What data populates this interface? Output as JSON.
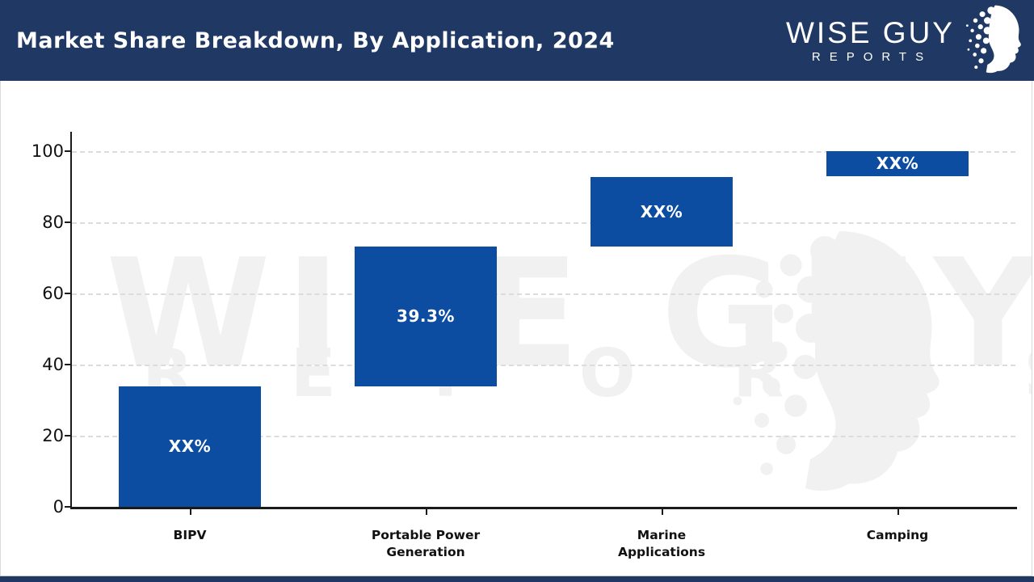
{
  "header": {
    "title": "Market Share Breakdown, By Application, 2024",
    "bg_color": "#1f3864",
    "logo": {
      "line1": "WISE GUY",
      "line2": "REPORTS",
      "head_icon": "dotted-head-profile"
    }
  },
  "watermark": {
    "line1": "WISE GUY",
    "line2": "REPORTS",
    "head_icon": "dotted-head-profile",
    "color": "#f1f1f1"
  },
  "chart_data": {
    "type": "bar",
    "subtype": "waterfall",
    "title": "Market Share Breakdown, By Application, 2024",
    "xlabel": "",
    "ylabel": "",
    "ylim": [
      0,
      100
    ],
    "yticks": [
      0,
      20,
      40,
      60,
      80,
      100
    ],
    "grid": "dashed-horizontal",
    "legend": "none",
    "bar_color": "#0c4da2",
    "bar_label_color": "#ffffff",
    "categories": [
      "BIPV",
      "Portable Power Generation",
      "Marine Applications",
      "Camping"
    ],
    "category_lines": [
      [
        "BIPV"
      ],
      [
        "Portable Power",
        "Generation"
      ],
      [
        "Marine",
        "Applications"
      ],
      [
        "Camping"
      ]
    ],
    "segments": [
      {
        "category": "BIPV",
        "label": "XX%",
        "start": 0,
        "end": 33.9
      },
      {
        "category": "Portable Power Generation",
        "label": "39.3%",
        "start": 33.9,
        "end": 73.2
      },
      {
        "category": "Marine Applications",
        "label": "XX%",
        "start": 73.2,
        "end": 92.7
      },
      {
        "category": "Camping",
        "label": "XX%",
        "start": 93.0,
        "end": 100.0
      }
    ]
  }
}
